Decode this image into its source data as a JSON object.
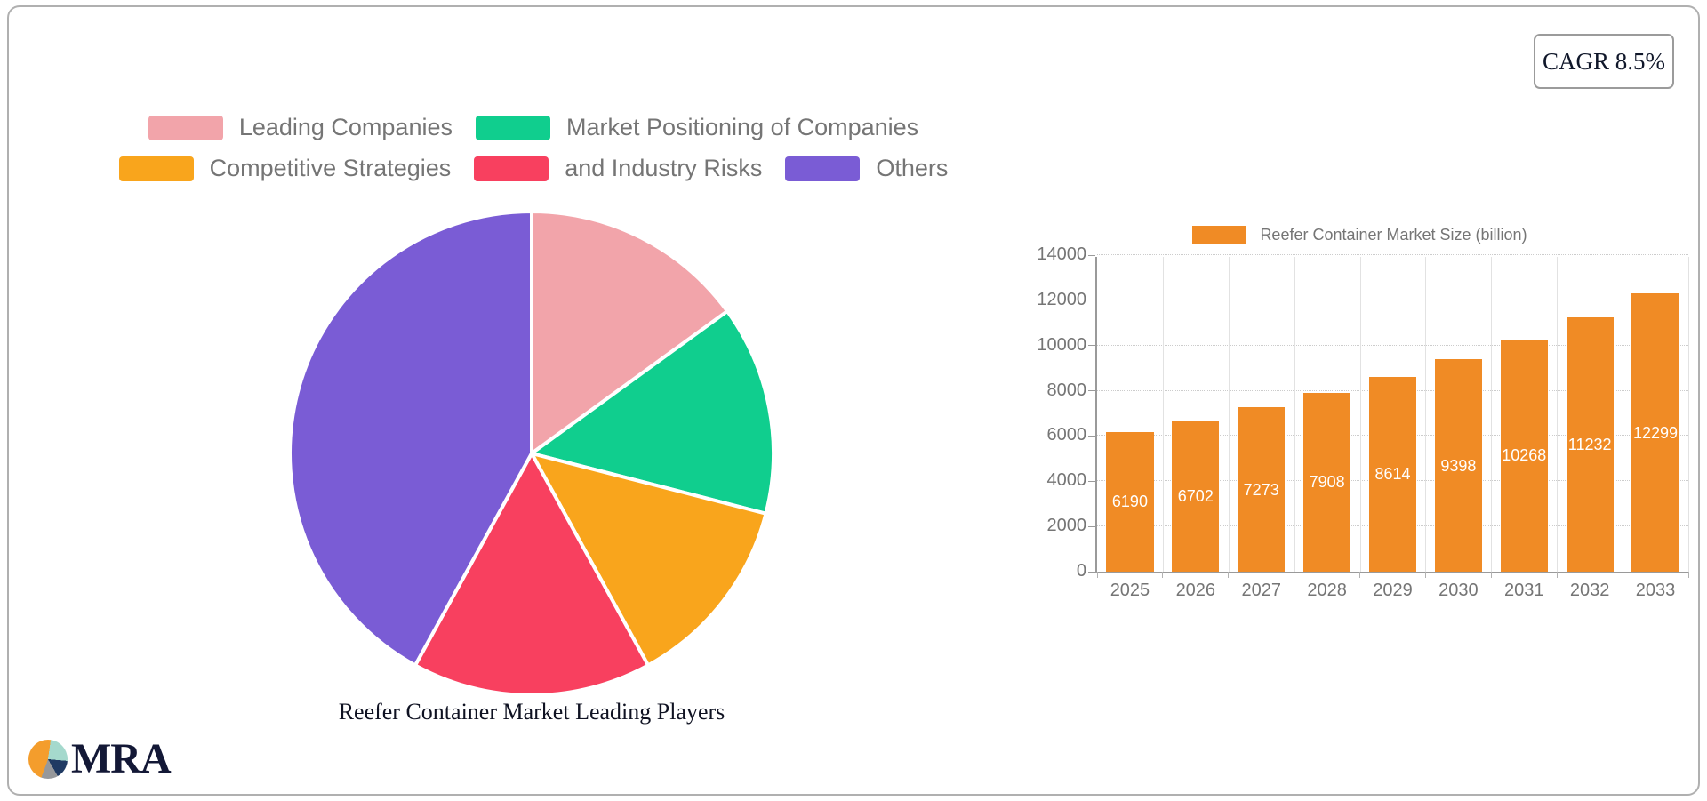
{
  "card": {
    "cagr_label": "CAGR 8.5%"
  },
  "logo": {
    "text": "MRA"
  },
  "colors": {
    "pie_slices": [
      "#f2a4aa",
      "#10ce8e",
      "#f9a51c",
      "#f8405f",
      "#7a5cd5"
    ],
    "bar": "#f08b25",
    "legend_text": "#757575",
    "axis_text": "#757575"
  },
  "chart_data": [
    {
      "type": "pie",
      "title": "Reefer Container Market Leading Players",
      "categories": [
        "Leading Companies",
        "Market Positioning of Companies",
        "Competitive Strategies",
        "and Industry Risks",
        "Others"
      ],
      "values": [
        15,
        14,
        13,
        16,
        42
      ],
      "colors": [
        "#f2a4aa",
        "#10ce8e",
        "#f9a51c",
        "#f8405f",
        "#7a5cd5"
      ],
      "legend_position": "top",
      "start_angle_deg": 0,
      "direction": "clockwise"
    },
    {
      "type": "bar",
      "legend": "Reefer Container Market Size (billion)",
      "categories": [
        "2025",
        "2026",
        "2027",
        "2028",
        "2029",
        "2030",
        "2031",
        "2032",
        "2033"
      ],
      "values": [
        6190,
        6702,
        7273,
        7908,
        8614,
        9398,
        10268,
        11232,
        12299
      ],
      "bar_color": "#f08b25",
      "ylim": [
        0,
        14000
      ],
      "ytick_step": 2000,
      "grid": true,
      "value_labels": "inside-center-white"
    }
  ]
}
